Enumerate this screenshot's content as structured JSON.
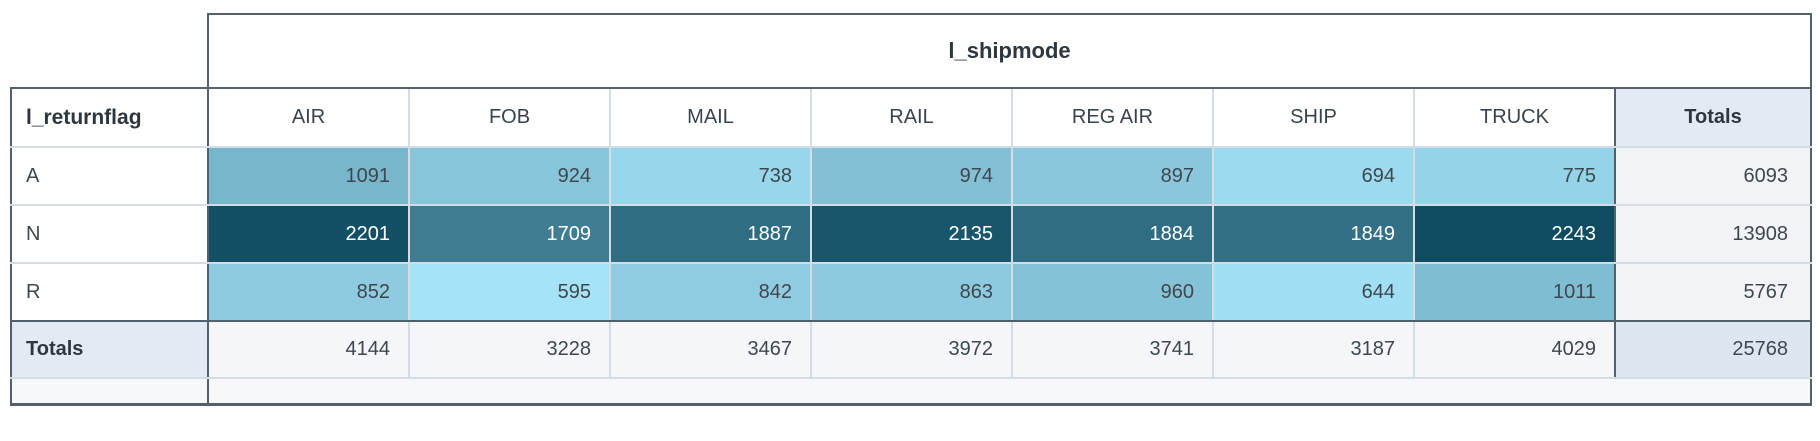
{
  "chart_data": {
    "type": "heatmap",
    "title": "l_shipmode",
    "column_dimension_label": "l_shipmode",
    "row_dimension_label": "l_returnflag",
    "categories": [
      "AIR",
      "FOB",
      "MAIL",
      "RAIL",
      "REG AIR",
      "SHIP",
      "TRUCK"
    ],
    "series": [
      {
        "name": "A",
        "values": [
          1091,
          924,
          738,
          974,
          897,
          694,
          775
        ],
        "total": 6093
      },
      {
        "name": "N",
        "values": [
          2201,
          1709,
          1887,
          2135,
          1884,
          1849,
          2243
        ],
        "total": 13908
      },
      {
        "name": "R",
        "values": [
          852,
          595,
          842,
          863,
          960,
          644,
          1011
        ],
        "total": 5767
      }
    ],
    "totals_label": "Totals",
    "column_totals": [
      4144,
      3228,
      3467,
      3972,
      3741,
      3187,
      4029
    ],
    "grand_total": 25768,
    "color_scale": {
      "domain": [
        595,
        2243
      ],
      "min_color": "#A5E3F8",
      "max_color": "#0F4C62",
      "white_text_threshold": 0.5
    }
  },
  "colors": {
    "border_dark": "#52616D",
    "border_light": "#D5DDE4",
    "header_text": "#2E373E",
    "cell_text": "#3F474E",
    "cell_text_light": "#FFFFFF",
    "totals_header_bg": "#E3EAF3",
    "row_totals_bg": "#F1F3F6",
    "totals_row_bg": "#F4F6F9",
    "grand_total_bg": "#DEE7F1",
    "footer_bg": "#F7F8FA",
    "background": "#FFFFFF"
  }
}
